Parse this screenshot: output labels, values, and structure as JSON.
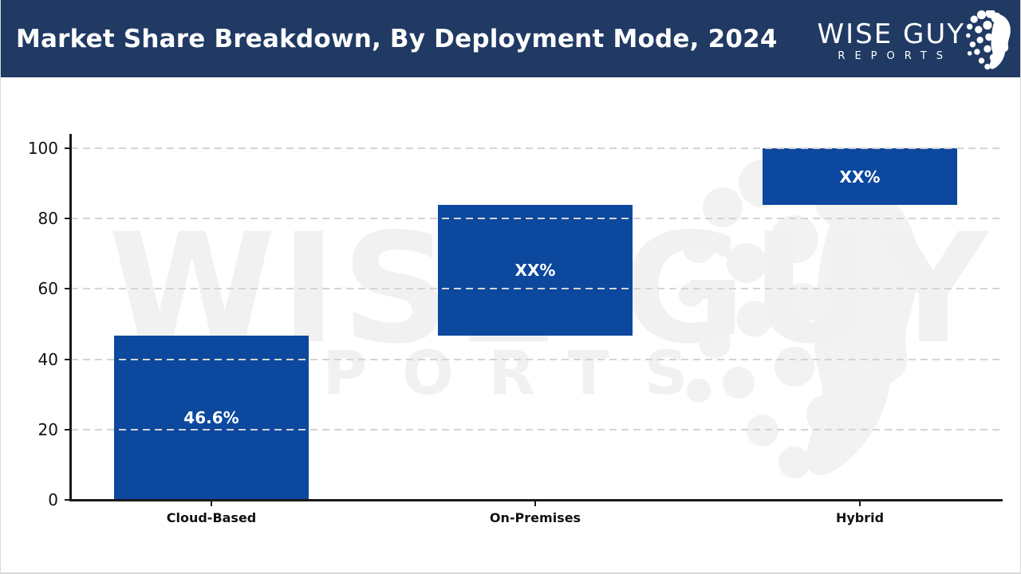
{
  "header": {
    "title": "Market Share Breakdown, By Deployment Mode, 2024",
    "bg_color": "#203A64",
    "logo": {
      "wordmark": "WISE GUY",
      "subtext": "REPORTS"
    }
  },
  "watermark": {
    "line1": "WISE GUY",
    "line2": "REPORTS"
  },
  "chart_data": {
    "type": "bar",
    "variant": "waterfall-floating-bars",
    "title": "Market Share Breakdown, By Deployment Mode, 2024",
    "categories": [
      "Cloud-Based",
      "On-Premises",
      "Hybrid"
    ],
    "segments": [
      {
        "category": "Cloud-Based",
        "start": 0,
        "end": 46.6,
        "label": "46.6%"
      },
      {
        "category": "On-Premises",
        "start": 46.6,
        "end": 83.8,
        "label": "XX%"
      },
      {
        "category": "Hybrid",
        "start": 83.8,
        "end": 100,
        "label": "XX%"
      }
    ],
    "xlabel": "",
    "ylabel": "",
    "yticks": [
      0,
      20,
      40,
      60,
      80,
      100
    ],
    "ylim": [
      0,
      104
    ],
    "grid": {
      "axis": "y",
      "style": "dashed",
      "color": "#d4d4d4",
      "above_bars": true
    },
    "legend": "none",
    "bar_color": "#0C489D",
    "bar_label_color": "#ffffff",
    "axis_color": "#1a1a1a"
  }
}
